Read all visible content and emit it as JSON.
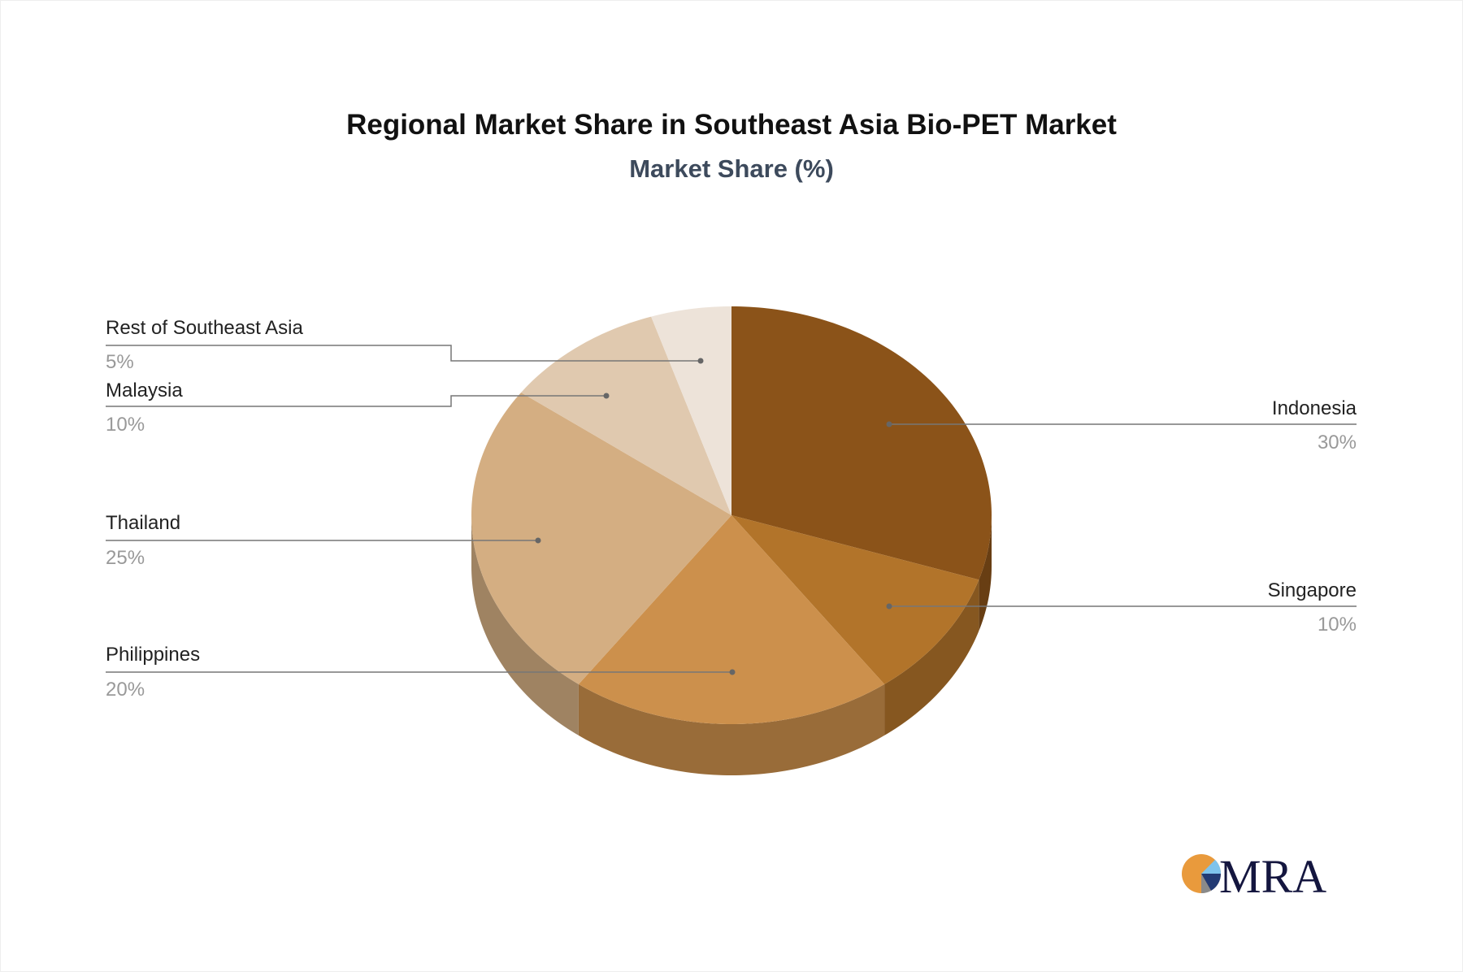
{
  "chart_data": {
    "type": "pie",
    "title": "Regional Market Share in Southeast Asia Bio-PET Market",
    "subtitle": "Market Share (%)",
    "slices": [
      {
        "label": "Indonesia",
        "value": 30,
        "display": "30%",
        "color": "#8B5319"
      },
      {
        "label": "Singapore",
        "value": 10,
        "display": "10%",
        "color": "#B2742A"
      },
      {
        "label": "Philippines",
        "value": 20,
        "display": "20%",
        "color": "#CC904C"
      },
      {
        "label": "Thailand",
        "value": 25,
        "display": "25%",
        "color": "#D4AE82"
      },
      {
        "label": "Malaysia",
        "value": 10,
        "display": "10%",
        "color": "#E0C9AF"
      },
      {
        "label": "Rest of Southeast Asia",
        "value": 5,
        "display": "5%",
        "color": "#EDE3D9"
      }
    ],
    "style": "3d-pie"
  },
  "logo": {
    "text": "MRA"
  }
}
